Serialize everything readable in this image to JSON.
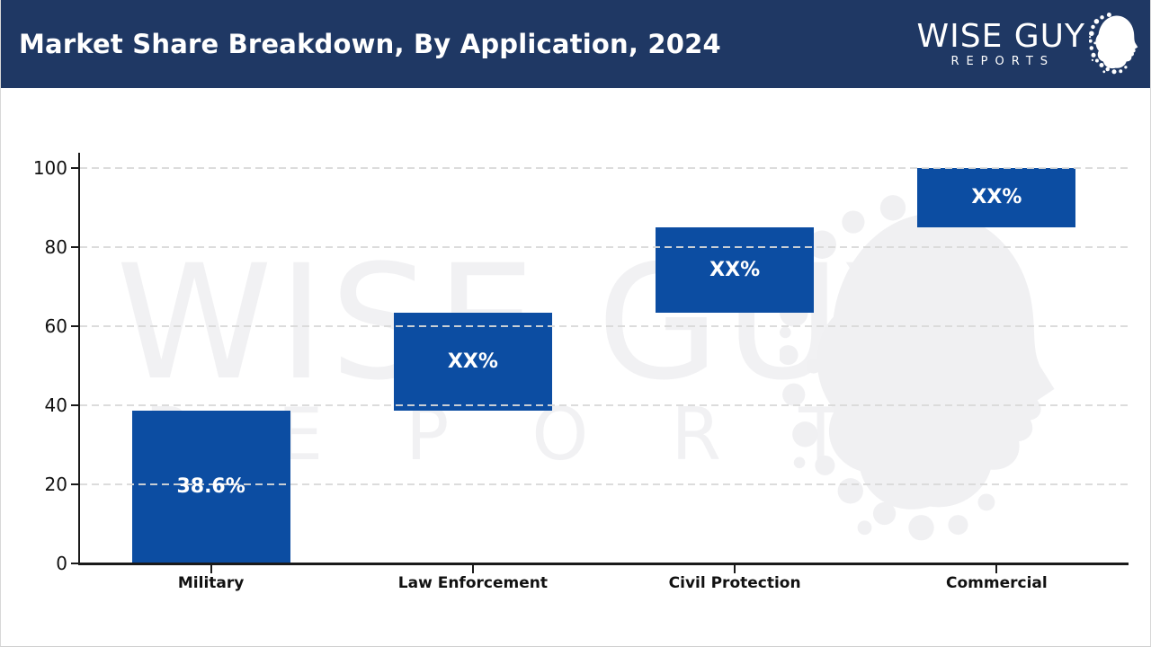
{
  "header": {
    "title": "Market Share Breakdown, By Application, 2024",
    "logo": {
      "brand_line1": "WISE GUY",
      "brand_line2": "REPORTS",
      "face_icon": "dotted-head-profile-icon"
    }
  },
  "watermark": {
    "line1": "WISE GUY",
    "line2": "REPORTS",
    "face_icon": "dotted-head-profile-watermark"
  },
  "chart_data": {
    "type": "bar",
    "subtype": "floating-waterfall",
    "title": "Market Share Breakdown, By Application, 2024",
    "categories": [
      "Military",
      "Law Enforcement",
      "Civil Protection",
      "Commercial"
    ],
    "series": [
      {
        "name": "Market share (%)",
        "segments": [
          {
            "category": "Military",
            "start": 0,
            "end": 38.6,
            "label": "38.6%"
          },
          {
            "category": "Law Enforcement",
            "start": 38.6,
            "end": 63.4,
            "label": "XX%"
          },
          {
            "category": "Civil Protection",
            "start": 63.4,
            "end": 85.0,
            "label": "XX%"
          },
          {
            "category": "Commercial",
            "start": 85.0,
            "end": 100.0,
            "label": "XX%"
          }
        ]
      }
    ],
    "xlabel": "",
    "ylabel": "",
    "ylim": [
      0,
      100
    ],
    "yticks": [
      0,
      20,
      40,
      60,
      80,
      100
    ],
    "grid": "horizontal-dashed",
    "legend": "none",
    "bar_label_values": [
      "38.6%",
      "XX%",
      "XX%",
      "XX%"
    ]
  },
  "colors": {
    "header_bg": "#1F3864",
    "bar": "#0C4DA2",
    "grid": "#D9D9D9",
    "axis": "#1A1A1A",
    "bar_label_text": "#FFFFFF",
    "watermark": "#F1F1F3",
    "title_text": "#FFFFFF"
  }
}
